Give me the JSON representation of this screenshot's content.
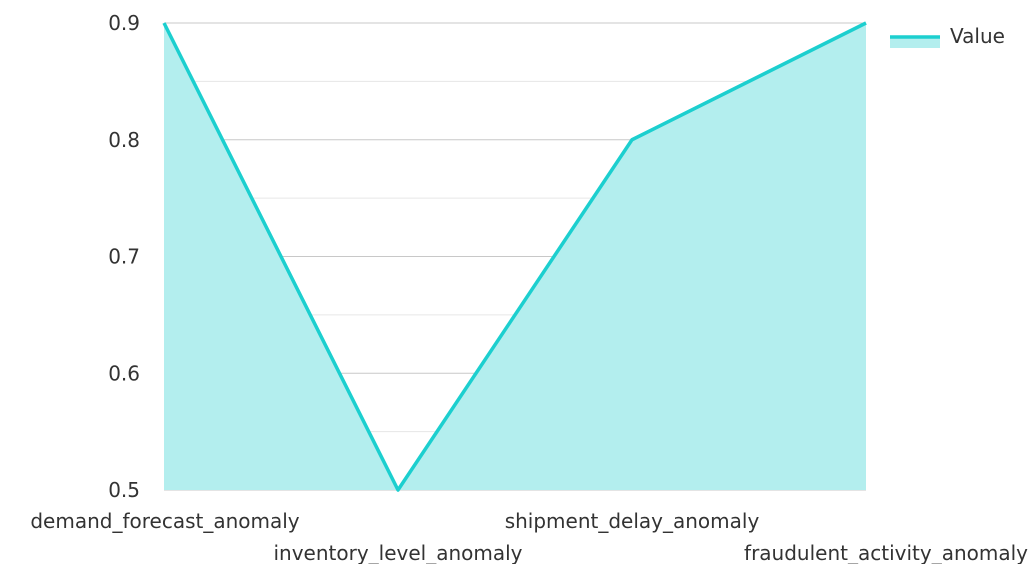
{
  "chart_data": {
    "type": "area",
    "categories": [
      "demand_forecast_anomaly",
      "inventory_level_anomaly",
      "shipment_delay_anomaly",
      "fraudulent_activity_anomaly"
    ],
    "series": [
      {
        "name": "Value",
        "values": [
          0.9,
          0.5,
          0.8,
          0.9
        ]
      }
    ],
    "ylim": [
      0.5,
      0.9
    ],
    "yticks": [
      "0.5",
      "0.6",
      "0.7",
      "0.8",
      "0.9"
    ],
    "grid": true,
    "legend_position": "top-right",
    "colors": {
      "line": "#1ccfcf",
      "fill": "#b3eeee",
      "grid_major": "#c8c8c8",
      "grid_minor": "#e6e6e6"
    }
  }
}
